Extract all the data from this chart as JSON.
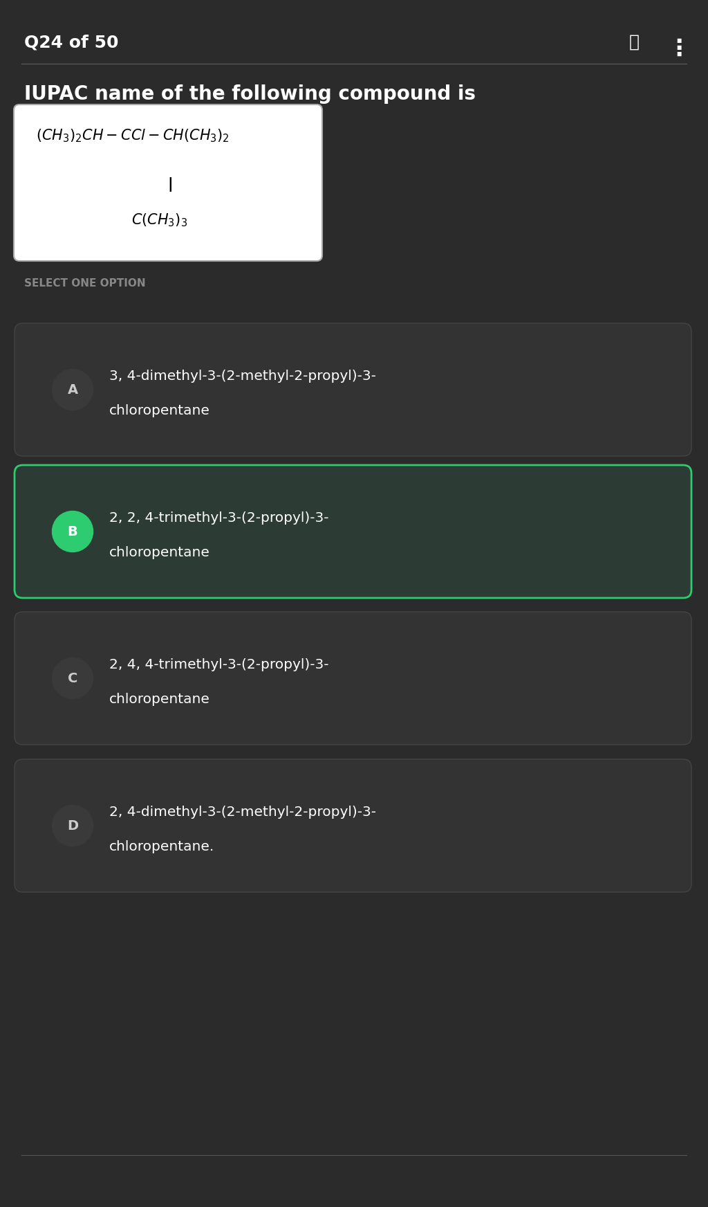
{
  "title_counter": "Q24 of 50",
  "question": "IUPAC name of the following compound is",
  "select_label": "SELECT ONE OPTION",
  "options": [
    {
      "letter": "A",
      "line1": "3, 4-dimethyl-3-(2-methyl-2-propyl)-3-",
      "line2": "chloropentane",
      "selected": false
    },
    {
      "letter": "B",
      "line1": "2, 2, 4-trimethyl-3-(2-propyl)-3-",
      "line2": "chloropentane",
      "selected": true
    },
    {
      "letter": "C",
      "line1": "2, 4, 4-trimethyl-3-(2-propyl)-3-",
      "line2": "chloropentane",
      "selected": false
    },
    {
      "letter": "D",
      "line1": "2, 4-dimethyl-3-(2-methyl-2-propyl)-3-",
      "line2": "chloropentane.",
      "selected": false
    }
  ],
  "bg_color": "#2b2b2b",
  "card_color": "#333333",
  "selected_card_color": "#2d3b35",
  "selected_border_color": "#2ecc71",
  "unselected_border_color": "#444444",
  "text_color": "#ffffff",
  "label_color": "#888888",
  "compound_bg": "#ffffff",
  "compound_text_color": "#000000",
  "letter_circle_unselected": "#3a3a3a",
  "letter_circle_selected": "#2ecc71",
  "letter_text_unselected": "#cccccc",
  "letter_text_selected": "#ffffff",
  "separator_color": "#555555"
}
